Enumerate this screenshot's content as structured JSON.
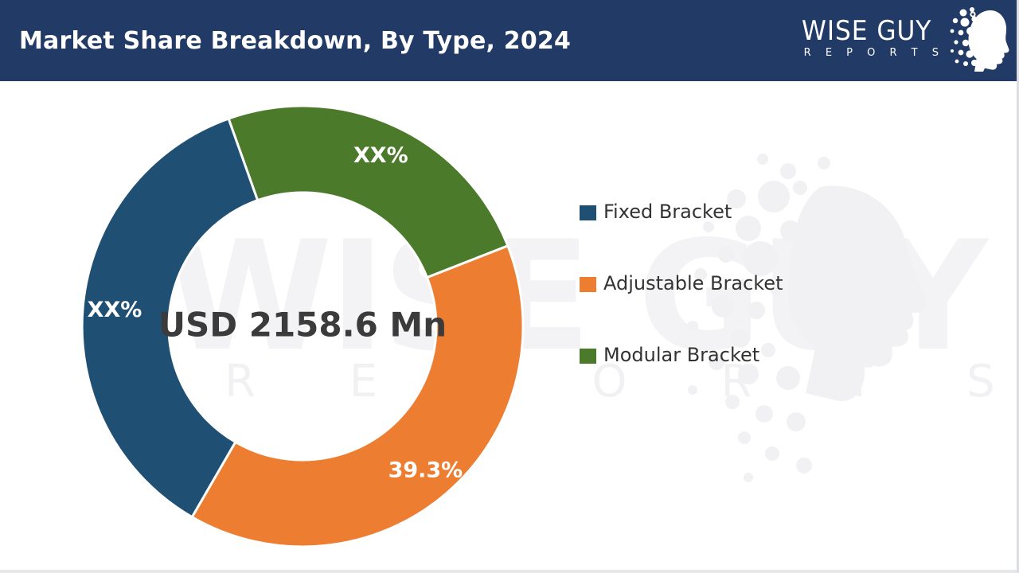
{
  "header": {
    "title": "Market Share Breakdown, By Type, 2024",
    "logo": {
      "wordmark": "WISE GUY",
      "subtext": "R E P O R T S"
    }
  },
  "donut": {
    "center_label": "USD 2158.6 Mn"
  },
  "legend": {
    "items": [
      {
        "label": "Fixed Bracket",
        "color": "#1f5074"
      },
      {
        "label": "Adjustable Bracket",
        "color": "#ed7d31"
      },
      {
        "label": "Modular Bracket",
        "color": "#4a7a2a"
      }
    ]
  },
  "watermark": {
    "line1": "WISE GUY",
    "line2": "R E P O R T S"
  },
  "chart_data": {
    "type": "pie",
    "variant": "donut",
    "title": "Market Share Breakdown, By Type, 2024",
    "center_label": "USD 2158.6 Mn",
    "legend_position": "right",
    "start_angle_deg": -19.6,
    "segments": [
      {
        "name": "Modular Bracket",
        "display_value": "XX%",
        "sweep_pct": 24.5,
        "color": "#4a7a2a"
      },
      {
        "name": "Adjustable Bracket",
        "display_value": "39.3%",
        "sweep_pct": 39.3,
        "color": "#ed7d31"
      },
      {
        "name": "Fixed Bracket",
        "display_value": "XX%",
        "sweep_pct": 36.2,
        "color": "#1f5074"
      }
    ]
  }
}
